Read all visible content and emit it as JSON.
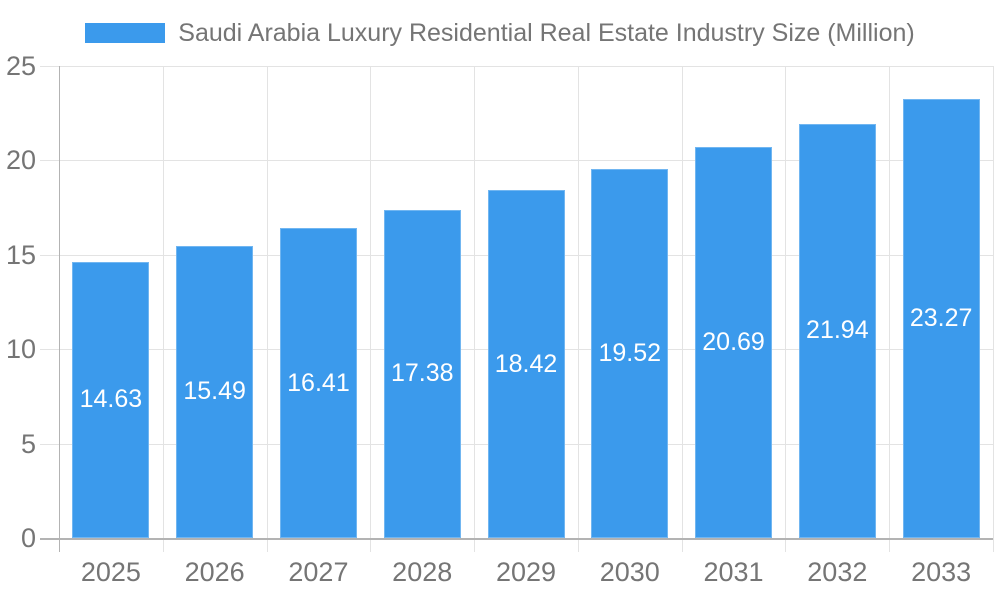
{
  "legend": {
    "label": "Saudi Arabia Luxury Residential Real Estate Industry Size (Million)",
    "swatch_color": "#3b9aec"
  },
  "chart_data": {
    "type": "bar",
    "title": "Saudi Arabia Luxury Residential Real Estate Industry Size (Million)",
    "categories": [
      "2025",
      "2026",
      "2027",
      "2028",
      "2029",
      "2030",
      "2031",
      "2032",
      "2033"
    ],
    "values": [
      14.63,
      15.49,
      16.41,
      17.38,
      18.42,
      19.52,
      20.69,
      21.94,
      23.27
    ],
    "value_labels": [
      "14.63",
      "15.49",
      "16.41",
      "17.38",
      "18.42",
      "19.52",
      "20.69",
      "21.94",
      "23.27"
    ],
    "xlabel": "",
    "ylabel": "",
    "ylim": [
      0,
      25
    ],
    "yticks": [
      0,
      5,
      10,
      15,
      20,
      25
    ],
    "grid": true,
    "legend_position": "top-center",
    "colors": {
      "bar": "#3b9aec",
      "axis_text": "#757575",
      "gridline": "#e3e3e3",
      "axis_line": "#b3b3b3",
      "value_label": "#ffffff",
      "background": "#ffffff"
    }
  }
}
